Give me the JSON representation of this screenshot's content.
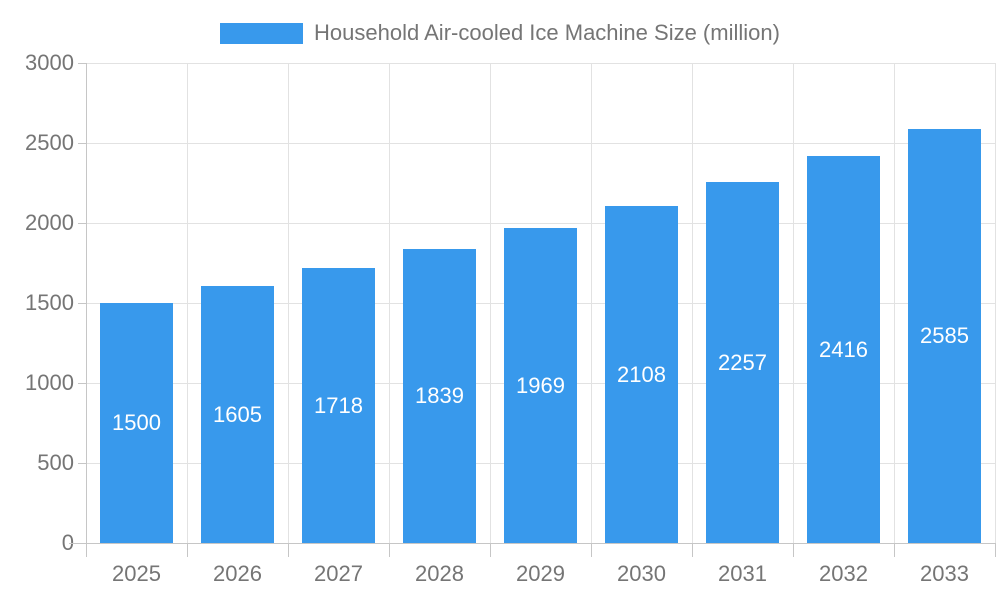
{
  "legend": {
    "label": "Household Air-cooled Ice Machine Size (million)"
  },
  "chart_data": {
    "type": "bar",
    "title": "Household Air-cooled Ice Machine Size (million)",
    "categories": [
      "2025",
      "2026",
      "2027",
      "2028",
      "2029",
      "2030",
      "2031",
      "2032",
      "2033"
    ],
    "series": [
      {
        "name": "Household Air-cooled Ice Machine Size (million)",
        "values": [
          1500,
          1605,
          1718,
          1839,
          1969,
          2108,
          2257,
          2416,
          2585
        ]
      }
    ],
    "xlabel": "",
    "ylabel": "",
    "ylim": [
      0,
      3000
    ],
    "y_ticks": [
      0,
      500,
      1000,
      1500,
      2000,
      2500,
      3000
    ],
    "grid": true,
    "legend_position": "top",
    "value_labels": "inside-center"
  },
  "colors": {
    "bar": "#3899EC",
    "grid_line": "#E2E2E2",
    "axis_line": "#C6C6C6",
    "tick_text": "#757575",
    "value_label_text": "#FFFFFF",
    "background": "#FFFFFF"
  }
}
